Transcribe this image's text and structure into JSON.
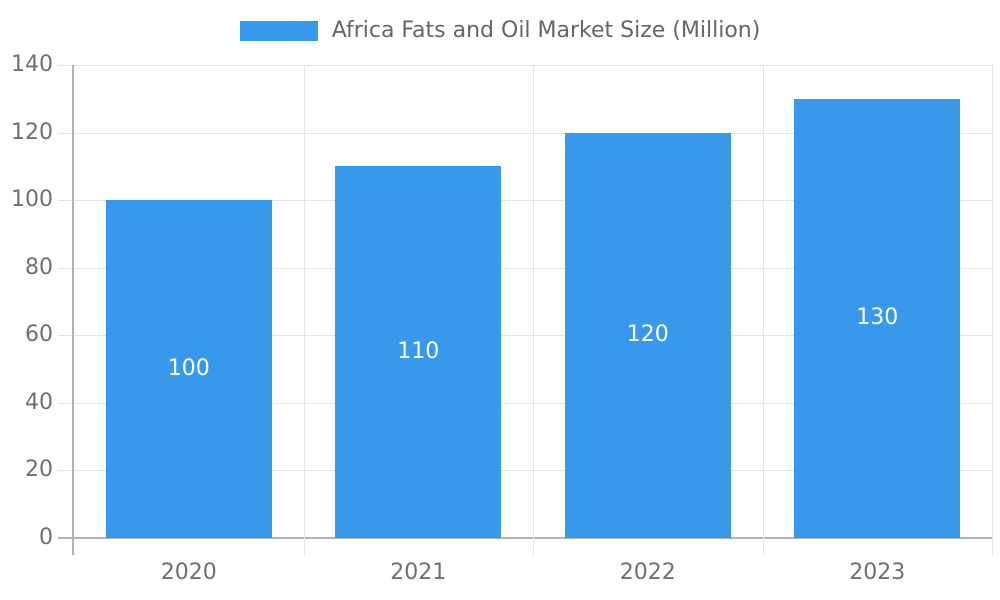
{
  "legend": {
    "label": "Africa Fats and Oil Market Size (Million)"
  },
  "chart_data": {
    "type": "bar",
    "title": "Africa Fats and Oil Market Size (Million)",
    "series_name": "Africa Fats and Oil Market Size (Million)",
    "categories": [
      "2020",
      "2021",
      "2022",
      "2023"
    ],
    "values": [
      100,
      110,
      120,
      130
    ],
    "data_labels": [
      "100",
      "110",
      "120",
      "130"
    ],
    "xlabel": "",
    "ylabel": "",
    "ylim": [
      0,
      140
    ],
    "yticks": [
      0,
      20,
      40,
      60,
      80,
      100,
      120,
      140
    ],
    "grid": true,
    "legend_position": "top",
    "data_label_position": "inside-center"
  },
  "colors": {
    "bar": "#3899EC",
    "bar_label": "#ffffff",
    "axis_text": "#707070",
    "legend_text": "#666666",
    "gridline": "#e5e5e5",
    "axis_line": "#b3b3b3",
    "background": "#ffffff"
  }
}
